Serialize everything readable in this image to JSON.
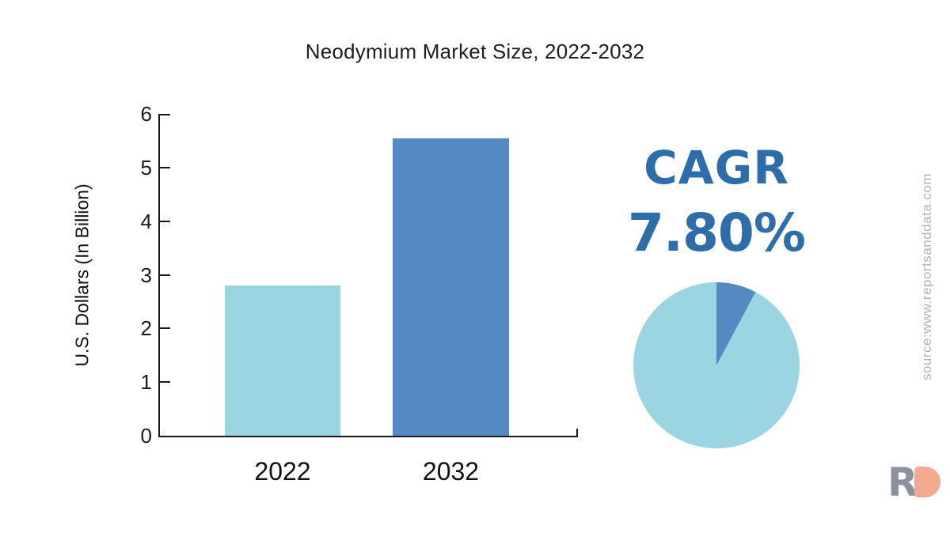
{
  "title": "Neodymium Market Size, 2022-2032",
  "chart_data": [
    {
      "type": "bar",
      "title": "Neodymium Market Size, 2022-2032",
      "categories": [
        "2022",
        "2032"
      ],
      "values": [
        2.8,
        5.55
      ],
      "xlabel": "",
      "ylabel": "U.S. Dollars (In Billion)",
      "ylim": [
        0,
        6
      ],
      "yticks": [
        0,
        1,
        2,
        3,
        4,
        5,
        6
      ],
      "bar_colors": [
        "#9ad5e1",
        "#5589c4"
      ],
      "grid": false,
      "legend": false
    },
    {
      "type": "pie",
      "slices": [
        {
          "name": "CAGR share",
          "value": 7.8,
          "color": "#5589c4"
        },
        {
          "name": "remainder",
          "value": 92.2,
          "color": "#9ad5e1"
        }
      ],
      "start_angle_deg": 0,
      "direction": "clockwise"
    }
  ],
  "cagr": {
    "label": "CAGR",
    "value": "7.80%",
    "percent": 7.8,
    "color": "#2d6da9"
  },
  "source": "source:www.reportsanddata.com",
  "logo": {
    "letter_r": "R",
    "letter_d_shape": "salmon-half-disc"
  },
  "colors": {
    "background": "#ffffff",
    "axis": "#1a1a1a",
    "bar_2022": "#9ad5e1",
    "bar_2032": "#5589c4",
    "cagr_text": "#2d6da9",
    "pie_light": "#9ad5e1",
    "pie_dark": "#5589c4",
    "source_text": "#b4b4b4",
    "logo_gray": "#8b929d",
    "logo_salmon": "#f3aa90"
  }
}
